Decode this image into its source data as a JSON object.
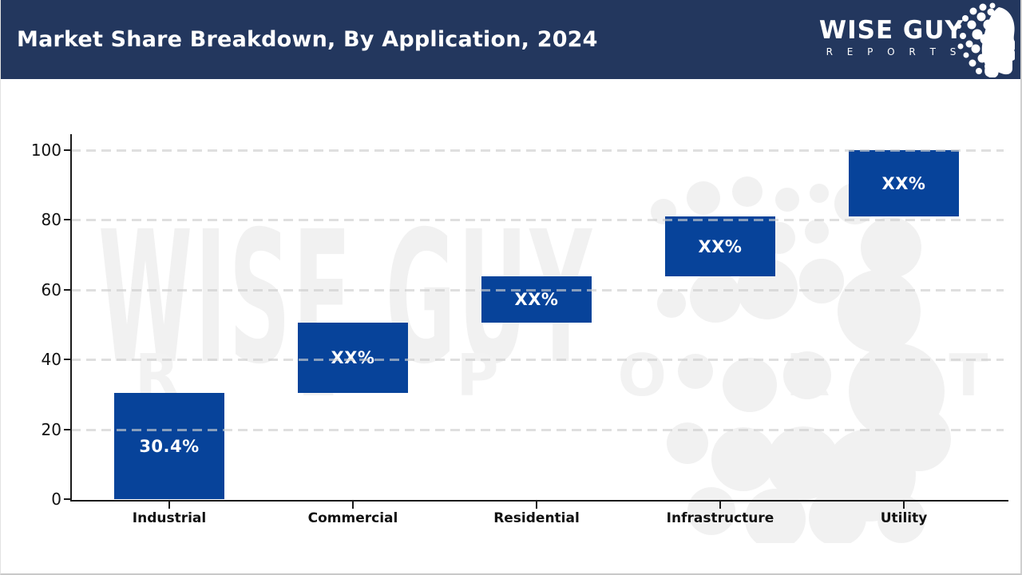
{
  "header": {
    "title": "Market Share Breakdown, By Application, 2024",
    "logo": {
      "line1": "WISE GUY",
      "line2": "R E P O R T S",
      "icon": "dotted-head-profile-icon"
    }
  },
  "watermark": {
    "line1": "WISE GUY",
    "line2": "R E P O R T S",
    "face": "dotted-head-profile-watermark"
  },
  "colors": {
    "header_bg": "#23375e",
    "bar": "#07439a",
    "bar_label": "#ffffff",
    "axis": "#1a1a1a",
    "tick_text": "#111111",
    "grid": "#cecece",
    "watermark": "#f1f1f1"
  },
  "chart_data": {
    "type": "bar",
    "subtype": "waterfall",
    "title": "Market Share Breakdown, By Application, 2024",
    "categories": [
      "Industrial",
      "Commercial",
      "Residential",
      "Infrastructure",
      "Utility"
    ],
    "bars": [
      {
        "category": "Industrial",
        "start": 0,
        "end": 30.4,
        "segment_value": 30.4,
        "label": "30.4%"
      },
      {
        "category": "Commercial",
        "start": 30.4,
        "end": 50.6,
        "segment_value": 20.2,
        "label": "XX%"
      },
      {
        "category": "Residential",
        "start": 50.6,
        "end": 63.8,
        "segment_value": 13.2,
        "label": "XX%"
      },
      {
        "category": "Infrastructure",
        "start": 63.8,
        "end": 81.0,
        "segment_value": 17.2,
        "label": "XX%"
      },
      {
        "category": "Utility",
        "start": 81.0,
        "end": 100,
        "segment_value": 19.0,
        "label": "XX%"
      }
    ],
    "xlabel": "",
    "ylabel": "",
    "ylim": [
      0,
      100
    ],
    "yticks": [
      0,
      20,
      40,
      60,
      80,
      100
    ],
    "grid": "horizontal dashed, drawn above bars",
    "legend": "none"
  }
}
